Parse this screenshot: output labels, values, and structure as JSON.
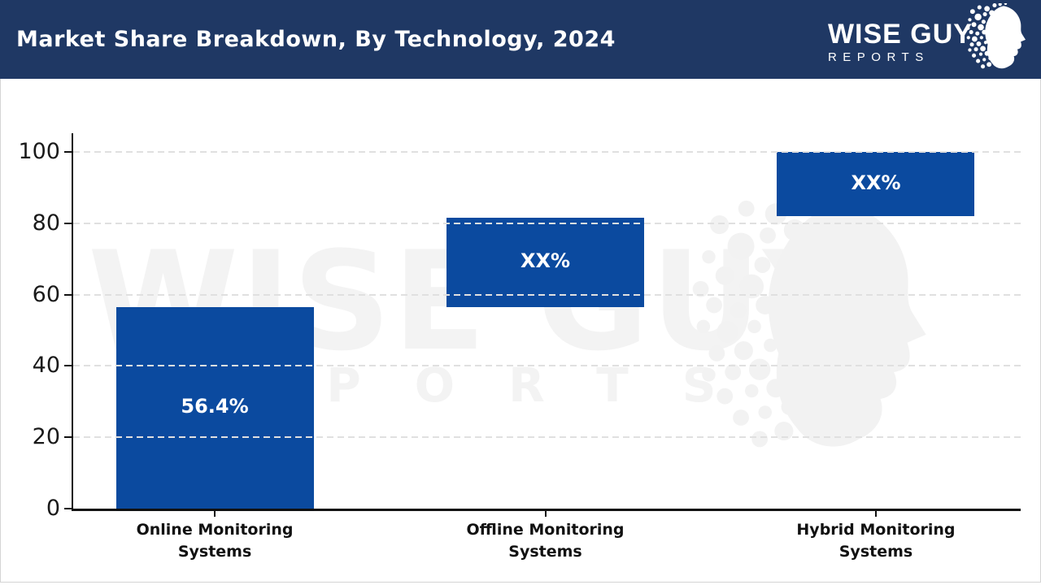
{
  "header": {
    "title": "Market Share Breakdown, By Technology, 2024",
    "brand": {
      "name": "WISE GUY",
      "sub": "REPORTS"
    },
    "bg_color": "#1f3864"
  },
  "watermark": {
    "line1": "WISE GUY",
    "line2": "REPORTS"
  },
  "chart_data": {
    "type": "bar",
    "variant": "floating-waterfall-segments",
    "title": "Market Share Breakdown, By Technology, 2024",
    "categories": [
      "Online Monitoring\nSystems",
      "Offline Monitoring\nSystems",
      "Hybrid Monitoring\nSystems"
    ],
    "segments": [
      {
        "category": "Online Monitoring Systems",
        "start": 0,
        "end": 56.4,
        "label": "56.4%"
      },
      {
        "category": "Offline Monitoring Systems",
        "start": 56.5,
        "end": 81.5,
        "label": "XX%"
      },
      {
        "category": "Hybrid Monitoring Systems",
        "start": 82,
        "end": 100,
        "label": "XX%"
      }
    ],
    "xlabel": "",
    "ylabel": "",
    "yticks": [
      0,
      20,
      40,
      60,
      80,
      100
    ],
    "ylim": [
      0,
      105
    ],
    "grid": "horizontal-dashed",
    "legend": "none",
    "colors": {
      "bar": "#0b4a9f",
      "bar_label": "#ffffff",
      "axis": "#111111",
      "tick_label": "#1a1a1a",
      "gridline": "#e0e0e0",
      "category_label": "#111111",
      "header_bg": "#1f3864",
      "watermark": "#f2f2f2"
    }
  }
}
